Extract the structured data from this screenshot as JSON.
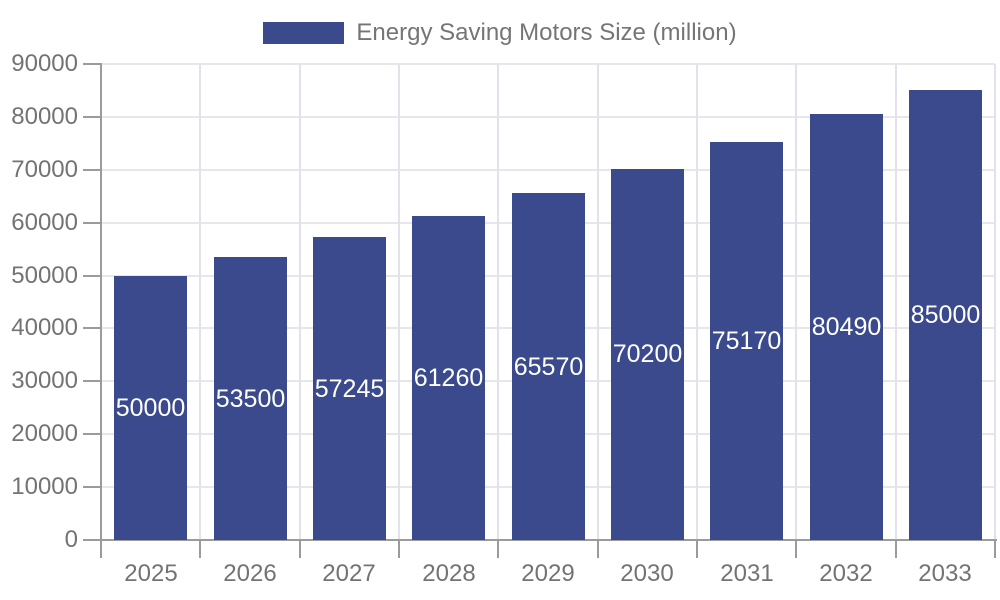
{
  "legend": {
    "label": "Energy Saving Motors Size (million)"
  },
  "chart_data": {
    "type": "bar",
    "title": "Energy Saving Motors Size (million)",
    "categories": [
      "2025",
      "2026",
      "2027",
      "2028",
      "2029",
      "2030",
      "2031",
      "2032",
      "2033"
    ],
    "series": [
      {
        "name": "Energy Saving Motors Size (million)",
        "values": [
          50000,
          53500,
          57245,
          61260,
          65570,
          70200,
          75170,
          80490,
          85000
        ],
        "color": "#3A4A8C"
      }
    ],
    "xlabel": "",
    "ylabel": "",
    "ylim": [
      0,
      90000
    ],
    "yticks": [
      0,
      10000,
      20000,
      30000,
      40000,
      50000,
      60000,
      70000,
      80000,
      90000
    ],
    "grid": true,
    "legend_position": "top-center",
    "value_label_position": "inside-center",
    "value_label_color": "#FFFFFF",
    "colors": {
      "bar": "#3A4A8C",
      "axis_text": "#737373",
      "legend_text": "#757575",
      "axis_line": "#9B9B9B",
      "gridline": "#E4E4EA",
      "background": "#FFFFFF"
    }
  }
}
